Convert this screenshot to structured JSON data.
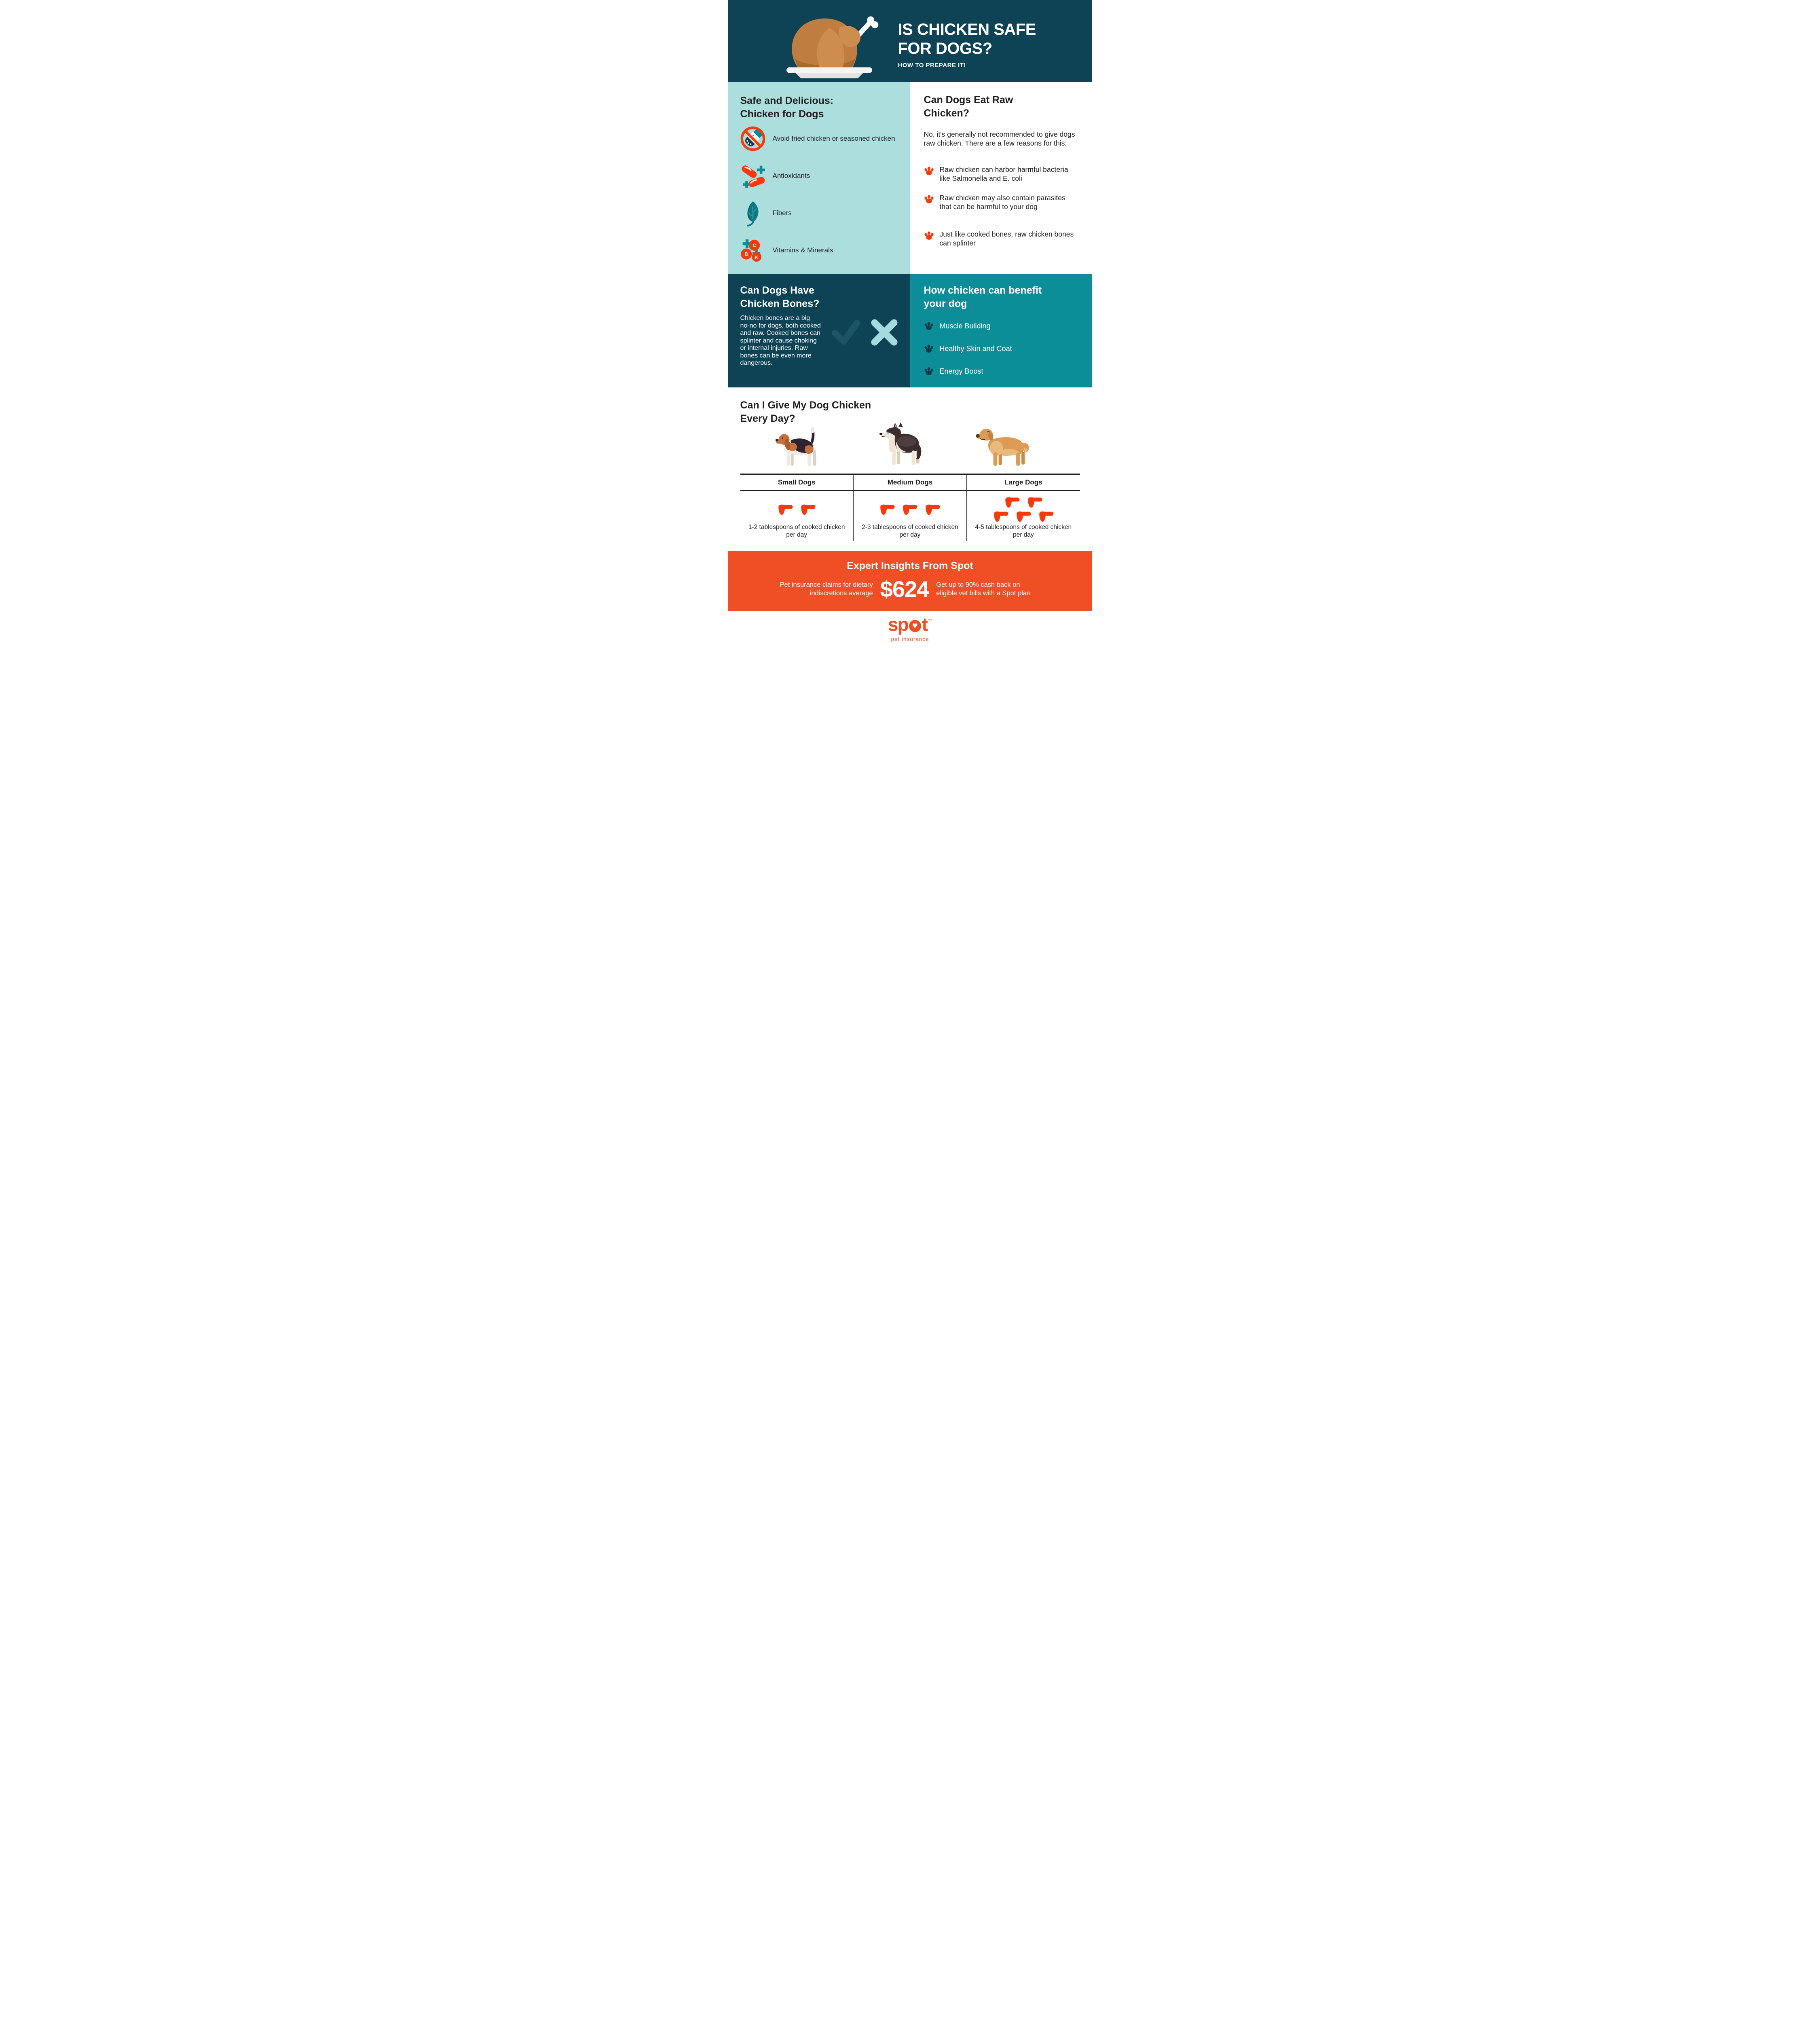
{
  "colors": {
    "navy": "#0e4255",
    "light_teal": "#abdedd",
    "teal": "#0b8e98",
    "orange_section": "#f04e25",
    "accent_red_orange": "#f8380d",
    "dark_text": "#231f20",
    "check_dark_teal": "#1c5365",
    "x_light_teal": "#a5dbdf"
  },
  "header": {
    "title_line1": "IS CHICKEN SAFE",
    "title_line2": "FOR DOGS?",
    "subtitle": "HOW TO PREPARE IT!"
  },
  "safe_section": {
    "title_line1": "Safe and Delicious:",
    "title_line2": "Chicken for Dogs",
    "items": [
      {
        "icon": "no-seasoning-icon",
        "label": "Avoid fried chicken or seasoned chicken"
      },
      {
        "icon": "antioxidants-pills-icon",
        "label": "Antioxidants"
      },
      {
        "icon": "fibers-leaf-icon",
        "label": "Fibers"
      },
      {
        "icon": "vitamins-minerals-icon",
        "label": "Vitamins & Minerals"
      }
    ],
    "vitamin_letters": [
      "C",
      "B",
      "K"
    ]
  },
  "raw_section": {
    "title_line1": "Can Dogs Eat Raw",
    "title_line2": "Chicken?",
    "intro": "No, it's generally not recommended to give dogs raw chicken. There are a few reasons for this:",
    "bullets": [
      "Raw chicken can harbor harmful bacteria like Salmonella and E. coli",
      "Raw chicken may also contain parasites that can be harmful to your dog",
      "Just like cooked bones, raw chicken bones can splinter"
    ]
  },
  "bones_section": {
    "title_line1": "Can Dogs Have",
    "title_line2": "Chicken Bones?",
    "paragraph": "Chicken bones are a big no-no for dogs, both cooked and raw. Cooked bones can splinter and cause choking or internal injuries. Raw bones can be even more dangerous."
  },
  "benefits_section": {
    "title_line1": "How chicken can benefit",
    "title_line2": "your dog",
    "bullets": [
      "Muscle Building",
      "Healthy Skin and Coat",
      "Energy Boost"
    ]
  },
  "daily_section": {
    "title_line1": "Can I Give My Dog Chicken",
    "title_line2": "Every Day?",
    "columns": [
      {
        "header": "Small Dogs",
        "dog": "beagle",
        "spoon_rows": [
          2
        ],
        "amount": "1-2 tablespoons of cooked chicken per day"
      },
      {
        "header": "Medium Dogs",
        "dog": "husky",
        "spoon_rows": [
          3
        ],
        "amount": "2-3 tablespoons of cooked chicken per day"
      },
      {
        "header": "Large Dogs",
        "dog": "golden-retriever",
        "spoon_rows": [
          2,
          3
        ],
        "amount": "4-5 tablespoons of cooked chicken per day"
      }
    ]
  },
  "insights_section": {
    "title": "Expert Insights From Spot",
    "left_text": "Pet insurance claims for dietary indiscretions average",
    "stat": "$624",
    "right_text": "Get up to 90% cash back on eligible vet bills with a Spot plan"
  },
  "footer": {
    "logo_sp": "sp",
    "logo_t": "t",
    "heart": "♥",
    "trademark": "™",
    "tagline": "pet insurance"
  }
}
